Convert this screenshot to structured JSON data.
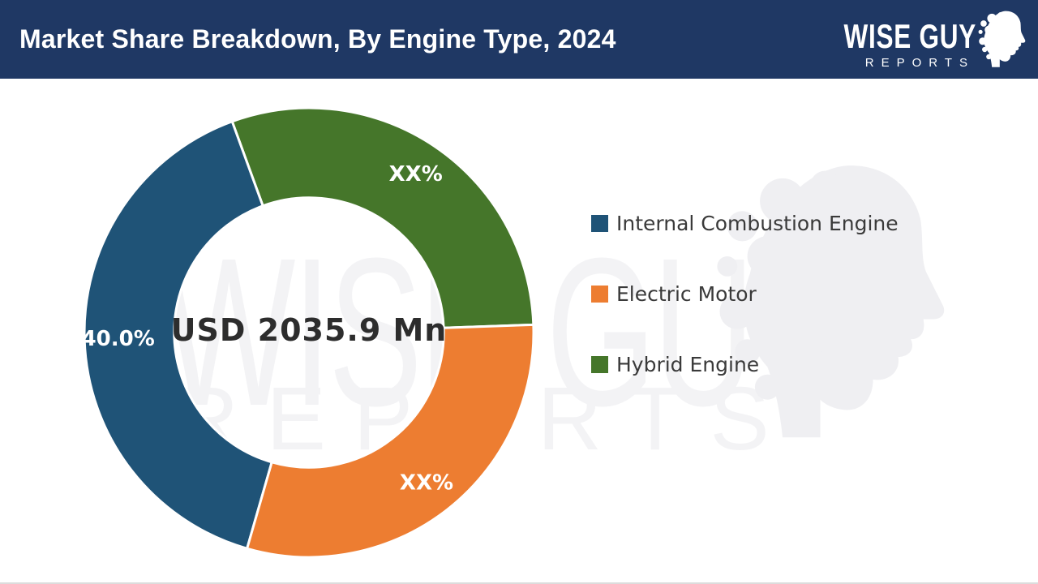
{
  "colors": {
    "header_bg": "#1F3864",
    "title_text": "#FFFFFF",
    "ice_blue": "#1F5377",
    "electric_orange": "#ED7D31",
    "hybrid_green": "#45762A",
    "legend_text": "#3A3A3A",
    "center_text": "#2D2D2D",
    "watermark": "#F3F3F5",
    "bottom_rule": "#DCDCDC"
  },
  "header": {
    "title": "Market Share Breakdown, By Engine Type, 2024",
    "logo": {
      "wordmark": "WISE GUY",
      "subtext": "REPORTS"
    }
  },
  "watermark": {
    "wordmark": "WISE GUY",
    "subtext": "REPORTS"
  },
  "chart_data": {
    "type": "pie",
    "subtype": "donut",
    "center_label": "USD 2035.9 Mn",
    "start_angle_deg": 2,
    "direction": "counterclockwise",
    "inner_radius_ratio": 0.6,
    "label_radius_ratio": 0.85,
    "gap_stroke_color": "#FFFFFF",
    "segments": [
      {
        "label": "Hybrid Engine",
        "value_pct": 30,
        "display_label": "XX%",
        "color": "#45762A",
        "masked": true
      },
      {
        "label": "Internal Combustion Engine",
        "value_pct": 40,
        "display_label": "40.0%",
        "color": "#1F5377",
        "masked": false
      },
      {
        "label": "Electric Motor",
        "value_pct": 30,
        "display_label": "XX%",
        "color": "#ED7D31",
        "masked": true
      }
    ],
    "note": "XX% labels are masked in source image; 30% each estimated from arc angles"
  },
  "legend": {
    "items": [
      {
        "label": "Internal Combustion Engine",
        "color": "#1F5377"
      },
      {
        "label": "Electric Motor",
        "color": "#ED7D31"
      },
      {
        "label": "Hybrid Engine",
        "color": "#45762A"
      }
    ]
  }
}
